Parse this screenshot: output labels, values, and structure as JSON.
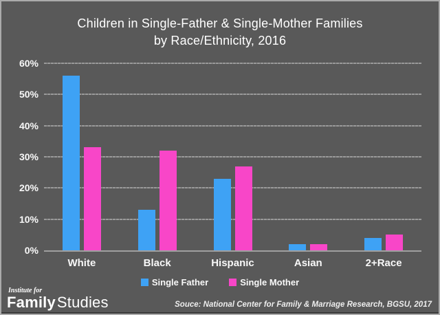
{
  "title": {
    "line1": "Children in Single-Father & Single-Mother Families",
    "line2": "by Race/Ethnicity, 2016"
  },
  "chart_data": {
    "type": "bar",
    "categories": [
      "White",
      "Black",
      "Hispanic",
      "Asian",
      "2+Race"
    ],
    "series": [
      {
        "name": "Single Father",
        "color": "#3ea2f5",
        "values": [
          56,
          13,
          23,
          2,
          4
        ]
      },
      {
        "name": "Single Mother",
        "color": "#f846c8",
        "values": [
          33,
          32,
          27,
          2,
          5
        ]
      }
    ],
    "title": "Children in Single-Father & Single-Mother Families by Race/Ethnicity, 2016",
    "xlabel": "",
    "ylabel": "",
    "ylim": [
      0,
      60
    ],
    "ytick_step": 10,
    "ytick_labels": [
      "0%",
      "10%",
      "20%",
      "30%",
      "40%",
      "50%",
      "60%"
    ],
    "grid": true,
    "legend_position": "bottom"
  },
  "colors": {
    "background": "#595959",
    "single_father": "#3ea2f5",
    "single_mother": "#f846c8",
    "gridline": "#9a9a9a",
    "text": "#f8f8f8"
  },
  "footer": {
    "logo_top": "Institute for",
    "logo_bold": "Family",
    "logo_regular": "Studies",
    "source": "Souce: National Center for Family & Marriage Research, BGSU, 2017"
  }
}
